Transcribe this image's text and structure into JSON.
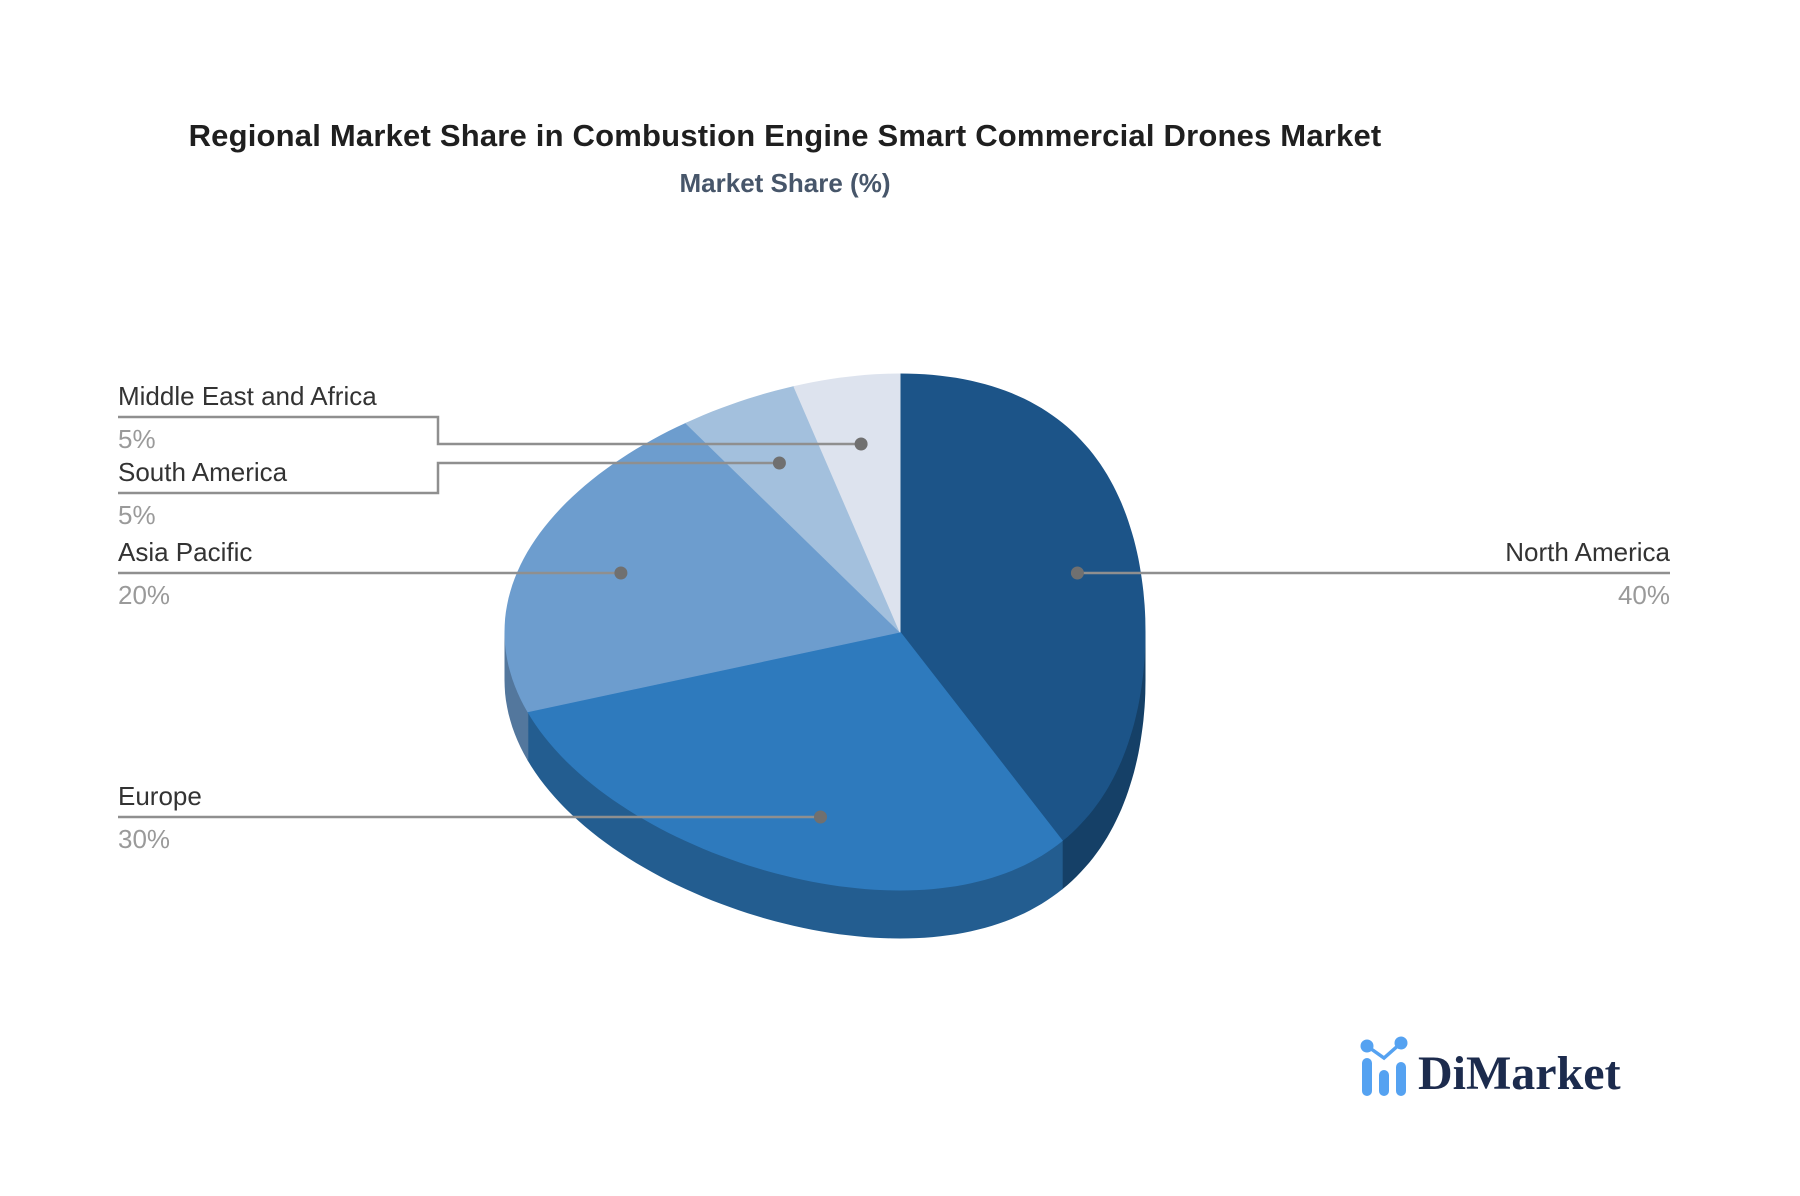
{
  "title": "Regional Market Share in Combustion Engine Smart Commercial Drones Market",
  "subtitle": "Market Share (%)",
  "chart_data": {
    "type": "pie",
    "effect": "3d",
    "direction": "clockwise",
    "start_angle_deg": 0,
    "unit": "%",
    "title": "Regional Market Share in Combustion Engine Smart Commercial Drones Market",
    "subtitle": "Market Share (%)",
    "slices": [
      {
        "label": "North America",
        "value": 40,
        "display": "40%",
        "color": "#1c5488",
        "label_side": "right"
      },
      {
        "label": "Europe",
        "value": 30,
        "display": "30%",
        "color": "#2e7abd",
        "label_side": "left"
      },
      {
        "label": "Asia Pacific",
        "value": 20,
        "display": "20%",
        "color": "#6d9dce",
        "label_side": "left"
      },
      {
        "label": "South America",
        "value": 5,
        "display": "5%",
        "color": "#a3c0dd",
        "label_side": "left"
      },
      {
        "label": "Middle East and Africa",
        "value": 5,
        "display": "5%",
        "color": "#dde3ee",
        "label_side": "left"
      }
    ],
    "leader_line_color": "#8f8f8f",
    "leader_dot_color": "#707070"
  },
  "logo": {
    "text": "DiMarket",
    "icon": "bar-line-chart-icon",
    "text_color": "#1c2b4d",
    "accent_color": "#55a2f1"
  }
}
